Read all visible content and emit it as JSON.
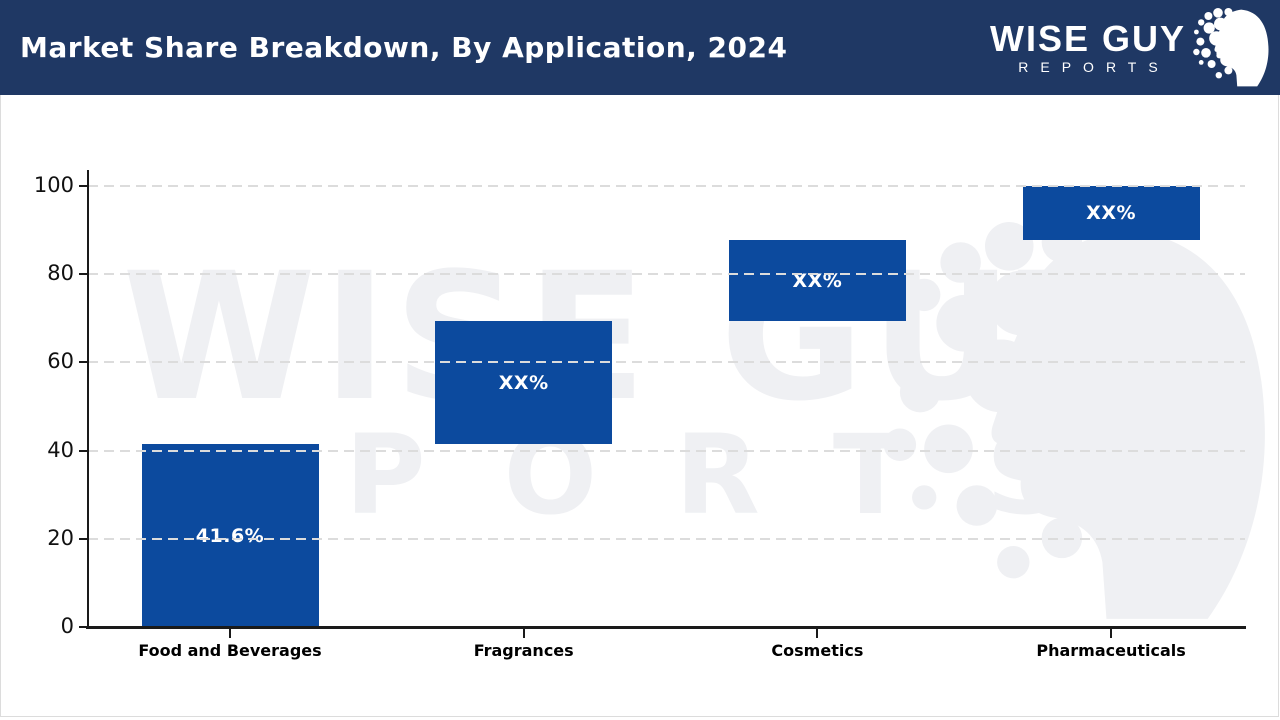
{
  "header": {
    "title": "Market Share Breakdown, By Application, 2024",
    "logo": {
      "line1": "WISE GUY",
      "line2": "REPORTS"
    }
  },
  "watermark": {
    "line1": "WISE GUY",
    "line2": "PORTS"
  },
  "colors": {
    "header_bg": "#1f3864",
    "bar": "#0c4a9e",
    "grid": "#dcdcdc",
    "axis": "#1a1a1a",
    "watermark": "#eff0f3",
    "bar_label": "#ffffff",
    "title_text": "#ffffff"
  },
  "chart_data": {
    "type": "bar",
    "variant": "waterfall",
    "title": "Market Share Breakdown, By Application, 2024",
    "categories": [
      "Food and Beverages",
      "Fragrances",
      "Cosmetics",
      "Pharmaceuticals"
    ],
    "segments": [
      {
        "category": "Food and Beverages",
        "start": 0,
        "end": 41.6,
        "label": "41.6%"
      },
      {
        "category": "Fragrances",
        "start": 41.6,
        "end": 69.3,
        "label": "XX%"
      },
      {
        "category": "Cosmetics",
        "start": 69.3,
        "end": 87.7,
        "label": "XX%"
      },
      {
        "category": "Pharmaceuticals",
        "start": 87.7,
        "end": 100,
        "label": "XX%"
      }
    ],
    "xlabel": "",
    "ylabel": "",
    "ylim": [
      0,
      100
    ],
    "yticks": [
      0,
      20,
      40,
      60,
      80,
      100
    ],
    "grid": "horizontal-dashed",
    "legend": "none",
    "bar_color": "#0c4a9e"
  }
}
